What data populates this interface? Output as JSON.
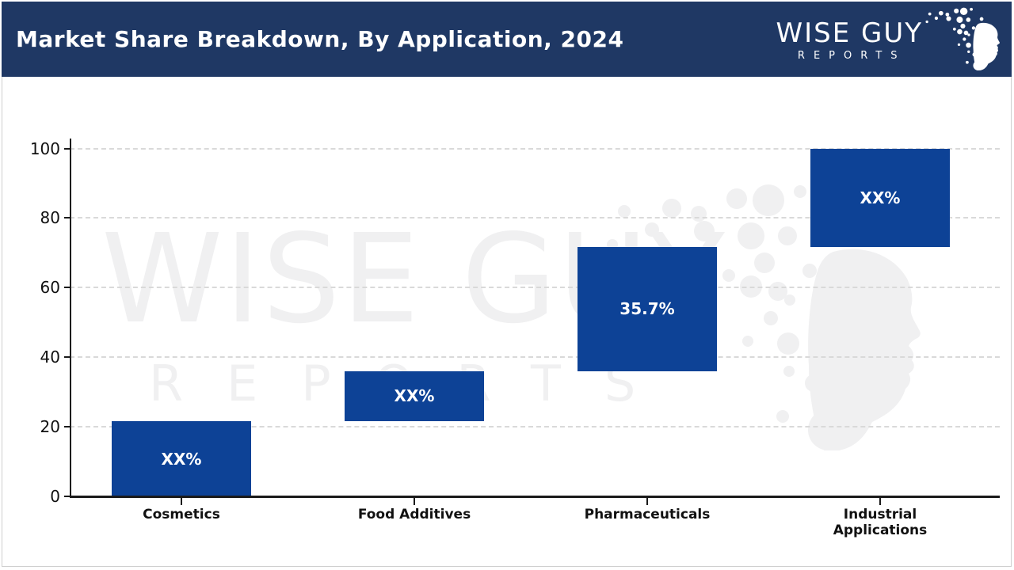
{
  "header": {
    "title": "Market Share Breakdown, By Application, 2024",
    "logo": {
      "line1": "WISE GUY",
      "line2": "REPORTS"
    }
  },
  "watermark": {
    "line1": "WISE GUY",
    "line2": "REPORTS"
  },
  "colors": {
    "header_bg": "#1f3864",
    "bar": "#0d4296",
    "bar_label_text": "#ffffff",
    "grid": "#d9d9d9",
    "axis": "#1a1a1a",
    "tick_text": "#111111",
    "watermark": "#f0f0f1",
    "title_text": "#ffffff"
  },
  "chart_data": {
    "type": "bar",
    "variant": "waterfall-floating-segments",
    "title": "Market Share Breakdown, By Application, 2024",
    "categories": [
      "Cosmetics",
      "Food Additives",
      "Pharmaceuticals",
      "Industrial Applications"
    ],
    "segments": [
      {
        "category": "Cosmetics",
        "start": 0,
        "end": 21.6,
        "value_label": "XX%"
      },
      {
        "category": "Food Additives",
        "start": 21.6,
        "end": 36.0,
        "value_label": "XX%"
      },
      {
        "category": "Pharmaceuticals",
        "start": 36.0,
        "end": 71.7,
        "value_label": "35.7%"
      },
      {
        "category": "Industrial Applications",
        "start": 71.7,
        "end": 100,
        "value_label": "XX%"
      }
    ],
    "xlabel": "",
    "ylabel": "",
    "ylim": [
      0,
      100
    ],
    "yticks": [
      0,
      20,
      40,
      60,
      80,
      100
    ],
    "grid": "horizontal-dashed",
    "legend": "none",
    "bar_color": "#0d4296"
  }
}
